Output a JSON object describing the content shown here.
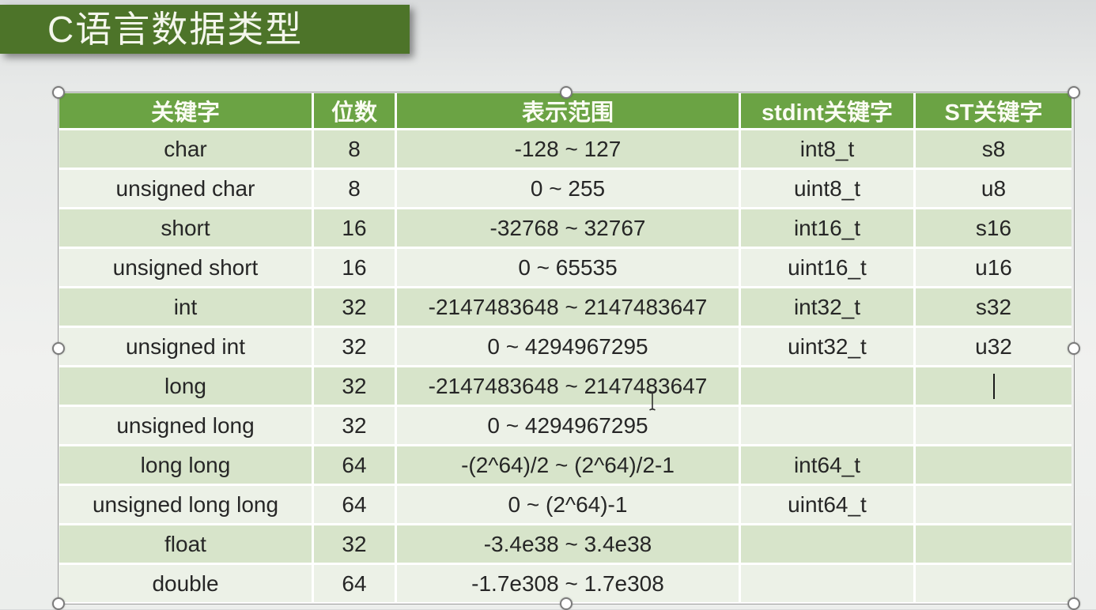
{
  "slide": {
    "title": "C语言数据类型"
  },
  "table": {
    "headers": [
      "关键字",
      "位数",
      "表示范围",
      "stdint关键字",
      "ST关键字"
    ],
    "rows": [
      [
        "char",
        "8",
        "-128 ~ 127",
        "int8_t",
        "s8"
      ],
      [
        "unsigned char",
        "8",
        "0 ~ 255",
        "uint8_t",
        "u8"
      ],
      [
        "short",
        "16",
        "-32768 ~ 32767",
        "int16_t",
        "s16"
      ],
      [
        "unsigned short",
        "16",
        "0 ~ 65535",
        "uint16_t",
        "u16"
      ],
      [
        "int",
        "32",
        "-2147483648 ~ 2147483647",
        "int32_t",
        "s32"
      ],
      [
        "unsigned int",
        "32",
        "0 ~ 4294967295",
        "uint32_t",
        "u32"
      ],
      [
        "long",
        "32",
        "-2147483648 ~ 2147483647",
        "",
        ""
      ],
      [
        "unsigned long",
        "32",
        "0 ~ 4294967295",
        "",
        ""
      ],
      [
        "long long",
        "64",
        "-(2^64)/2 ~ (2^64)/2-1",
        "int64_t",
        ""
      ],
      [
        "unsigned long long",
        "64",
        "0 ~ (2^64)-1",
        "uint64_t",
        ""
      ],
      [
        "float",
        "32",
        "-3.4e38 ~ 3.4e38",
        "",
        ""
      ],
      [
        "double",
        "64",
        "-1.7e308 ~ 1.7e308",
        "",
        ""
      ]
    ],
    "caret": {
      "row": 6,
      "col": 4
    }
  },
  "editor": {
    "selected_object": "table",
    "selection_handle_count": 8,
    "caret_visible": true,
    "mouse_cursor": "text-ibeam"
  },
  "colors": {
    "banner_green": "#4d7429",
    "header_green": "#6ba344",
    "row_green_dark": "#d7e4ca",
    "row_green_light": "#ecf1e7",
    "header_text": "#fbfcf3",
    "title_text": "#f4f6ec",
    "body_text": "#262626",
    "selection_gray": "#9a9a9a"
  }
}
